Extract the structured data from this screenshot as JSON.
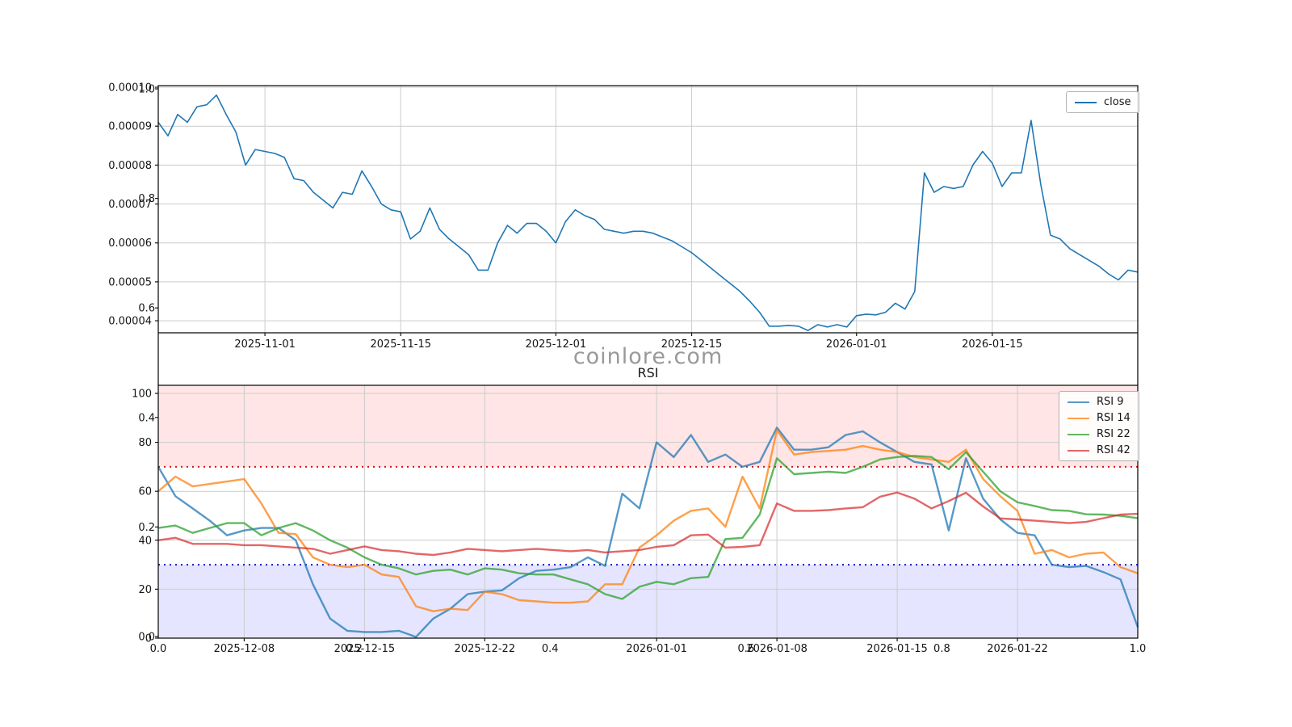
{
  "watermark": "coinlore.com",
  "hidden_axis": {
    "xtick_labels": [
      "0.0",
      "0.2",
      "0.4",
      "0.6",
      "0.8",
      "1.0"
    ],
    "ytick_labels": [
      "1.0",
      "0.8",
      "0.6",
      "0.4",
      "0.2",
      "0.0"
    ]
  },
  "chart_data": [
    {
      "type": "line",
      "title": "",
      "legend": [
        "close"
      ],
      "legend_position": "upper right",
      "grid": true,
      "x_start_date": "2025-10-21",
      "x_end_date": "2026-01-30",
      "x_frequency": "daily",
      "xticks": [
        {
          "label": "2025-11-01",
          "index": 11
        },
        {
          "label": "2025-11-15",
          "index": 25
        },
        {
          "label": "2025-12-01",
          "index": 41
        },
        {
          "label": "2025-12-15",
          "index": 55
        },
        {
          "label": "2026-01-01",
          "index": 72
        },
        {
          "label": "2026-01-15",
          "index": 86
        }
      ],
      "yticks": [
        {
          "label": "0.00004",
          "value": 4e-05
        },
        {
          "label": "0.00005",
          "value": 5e-05
        },
        {
          "label": "0.00006",
          "value": 6e-05
        },
        {
          "label": "0.00007",
          "value": 7e-05
        },
        {
          "label": "0.00008",
          "value": 8e-05
        },
        {
          "label": "0.00009",
          "value": 9e-05
        },
        {
          "label": "0.00010",
          "value": 0.0001
        }
      ],
      "ylim": [
        3.69e-05,
        0.00010042
      ],
      "series": [
        {
          "name": "close",
          "color": "#1f77b4",
          "line_width": 1.6,
          "values": [
            9.1e-05,
            8.75e-05,
            9.3e-05,
            9.1e-05,
            9.5e-05,
            9.55e-05,
            9.8e-05,
            9.3e-05,
            8.85e-05,
            8e-05,
            8.4e-05,
            8.35e-05,
            8.3e-05,
            8.2e-05,
            7.65e-05,
            7.6e-05,
            7.3e-05,
            7.1e-05,
            6.9e-05,
            7.3e-05,
            7.25e-05,
            7.85e-05,
            7.45e-05,
            7e-05,
            6.85e-05,
            6.8e-05,
            6.1e-05,
            6.3e-05,
            6.9e-05,
            6.35e-05,
            6.1e-05,
            5.9e-05,
            5.7e-05,
            5.3e-05,
            5.3e-05,
            6e-05,
            6.45e-05,
            6.25e-05,
            6.5e-05,
            6.5e-05,
            6.3e-05,
            6e-05,
            6.55e-05,
            6.85e-05,
            6.7e-05,
            6.6e-05,
            6.35e-05,
            6.3e-05,
            6.25e-05,
            6.3e-05,
            6.3e-05,
            6.25e-05,
            6.15e-05,
            6.05e-05,
            5.9e-05,
            5.75e-05,
            5.55e-05,
            5.35e-05,
            5.15e-05,
            4.95e-05,
            4.75e-05,
            4.5e-05,
            4.22e-05,
            3.86e-05,
            3.86e-05,
            3.88e-05,
            3.86e-05,
            3.75e-05,
            3.9e-05,
            3.84e-05,
            3.9e-05,
            3.84e-05,
            4.13e-05,
            4.17e-05,
            4.15e-05,
            4.22e-05,
            4.45e-05,
            4.3e-05,
            4.75e-05,
            7.8e-05,
            7.3e-05,
            7.45e-05,
            7.4e-05,
            7.45e-05,
            8e-05,
            8.35e-05,
            8.05e-05,
            7.45e-05,
            7.8e-05,
            7.8e-05,
            9.15e-05,
            7.5e-05,
            6.2e-05,
            6.1e-05,
            5.85e-05,
            5.7e-05,
            5.55e-05,
            5.4e-05,
            5.2e-05,
            5.05e-05,
            5.3e-05,
            5.25e-05
          ]
        }
      ]
    },
    {
      "type": "line",
      "title": "RSI",
      "legend": [
        "RSI 9",
        "RSI 14",
        "RSI 22",
        "RSI 42"
      ],
      "legend_position": "upper right",
      "grid": true,
      "x_start_date": "2025-12-03",
      "x_end_date": "2026-01-29",
      "x_frequency": "daily",
      "xticks": [
        {
          "label": "2025-12-08",
          "index": 5
        },
        {
          "label": "2025-12-15",
          "index": 12
        },
        {
          "label": "2025-12-22",
          "index": 19
        },
        {
          "label": "2026-01-01",
          "index": 29
        },
        {
          "label": "2026-01-08",
          "index": 36
        },
        {
          "label": "2026-01-15",
          "index": 43
        },
        {
          "label": "2026-01-22",
          "index": 50
        }
      ],
      "yticks": [
        {
          "label": "0",
          "value": 0
        },
        {
          "label": "20",
          "value": 20
        },
        {
          "label": "40",
          "value": 40
        },
        {
          "label": "60",
          "value": 60
        },
        {
          "label": "80",
          "value": 80
        },
        {
          "label": "100",
          "value": 100
        }
      ],
      "ylim": [
        0,
        103.3
      ],
      "reference_lines": [
        {
          "value": 70,
          "color": "#dd0f0f",
          "style": "dotted",
          "meaning": "overbought"
        },
        {
          "value": 30,
          "color": "#1212cc",
          "style": "dotted",
          "meaning": "oversold"
        }
      ],
      "bands": [
        {
          "from": 70,
          "to": 103.3,
          "color": "rgba(255,45,45,0.12)",
          "meaning": "overbought-zone"
        },
        {
          "from": 0,
          "to": 30,
          "color": "rgba(45,45,255,0.12)",
          "meaning": "oversold-zone"
        }
      ],
      "series": [
        {
          "name": "RSI 9",
          "color": "rgba(31,119,180,0.75)",
          "line_width": 2.4,
          "values": [
            70,
            58,
            53,
            48,
            42,
            44,
            45,
            45,
            40,
            22,
            8,
            3,
            2.5,
            2.5,
            3,
            0.5,
            8,
            12,
            18,
            19,
            19.5,
            24.5,
            27.5,
            28,
            29,
            33,
            29.5,
            59,
            53,
            80,
            74,
            83,
            72,
            75,
            70,
            72,
            86,
            77,
            77,
            78,
            83,
            84.5,
            80,
            76,
            72,
            71,
            44,
            73.5,
            57,
            48.5,
            43,
            42,
            30,
            29,
            29.5,
            27,
            24,
            4.5
          ]
        },
        {
          "name": "RSI 14",
          "color": "rgba(255,127,14,0.75)",
          "line_width": 2.4,
          "values": [
            60,
            66,
            62,
            63,
            64,
            65,
            55,
            43,
            42.5,
            33,
            30,
            29,
            30,
            26,
            25,
            13,
            11,
            12,
            11.5,
            19,
            18,
            15.5,
            15,
            14.5,
            14.5,
            15,
            22,
            22,
            37,
            42,
            48,
            52,
            53,
            45.5,
            66,
            53,
            85,
            75,
            76,
            76.5,
            77,
            78.5,
            77,
            76,
            74,
            73,
            72,
            77,
            65,
            58,
            52,
            34.5,
            36,
            33,
            34.5,
            35,
            29,
            26.5
          ]
        },
        {
          "name": "RSI 22",
          "color": "rgba(44,160,44,0.75)",
          "line_width": 2.4,
          "values": [
            45,
            46,
            43,
            45,
            47,
            47,
            42,
            45,
            47,
            44,
            40,
            37,
            33,
            30,
            28.5,
            26,
            27.5,
            28,
            26,
            28.5,
            28,
            26.5,
            26,
            26,
            24,
            22,
            18,
            16,
            21,
            23,
            22,
            24.5,
            25,
            40.5,
            41,
            50.5,
            73.5,
            67,
            67.5,
            68,
            67.5,
            70,
            73,
            74,
            74.5,
            74,
            69,
            76,
            68,
            60,
            55.5,
            54,
            52.3,
            52,
            50.6,
            50.5,
            50,
            49
          ]
        },
        {
          "name": "RSI 42",
          "color": "rgba(214,39,40,0.70)",
          "line_width": 2.4,
          "values": [
            40,
            41,
            38.5,
            38.5,
            38.5,
            38,
            38,
            37.5,
            37,
            36.5,
            34.5,
            36,
            37.5,
            36,
            35.5,
            34.5,
            34,
            35,
            36.5,
            36,
            35.5,
            36,
            36.5,
            36,
            35.5,
            36,
            35,
            35.5,
            36,
            37.3,
            38,
            42,
            42.3,
            37,
            37.3,
            38,
            55,
            52,
            52,
            52.3,
            53,
            53.5,
            57.8,
            59.5,
            57,
            53,
            56,
            59.4,
            53.8,
            48.9,
            48.5,
            48,
            47.5,
            47,
            47.5,
            49,
            50.5,
            50.8
          ]
        }
      ]
    }
  ]
}
